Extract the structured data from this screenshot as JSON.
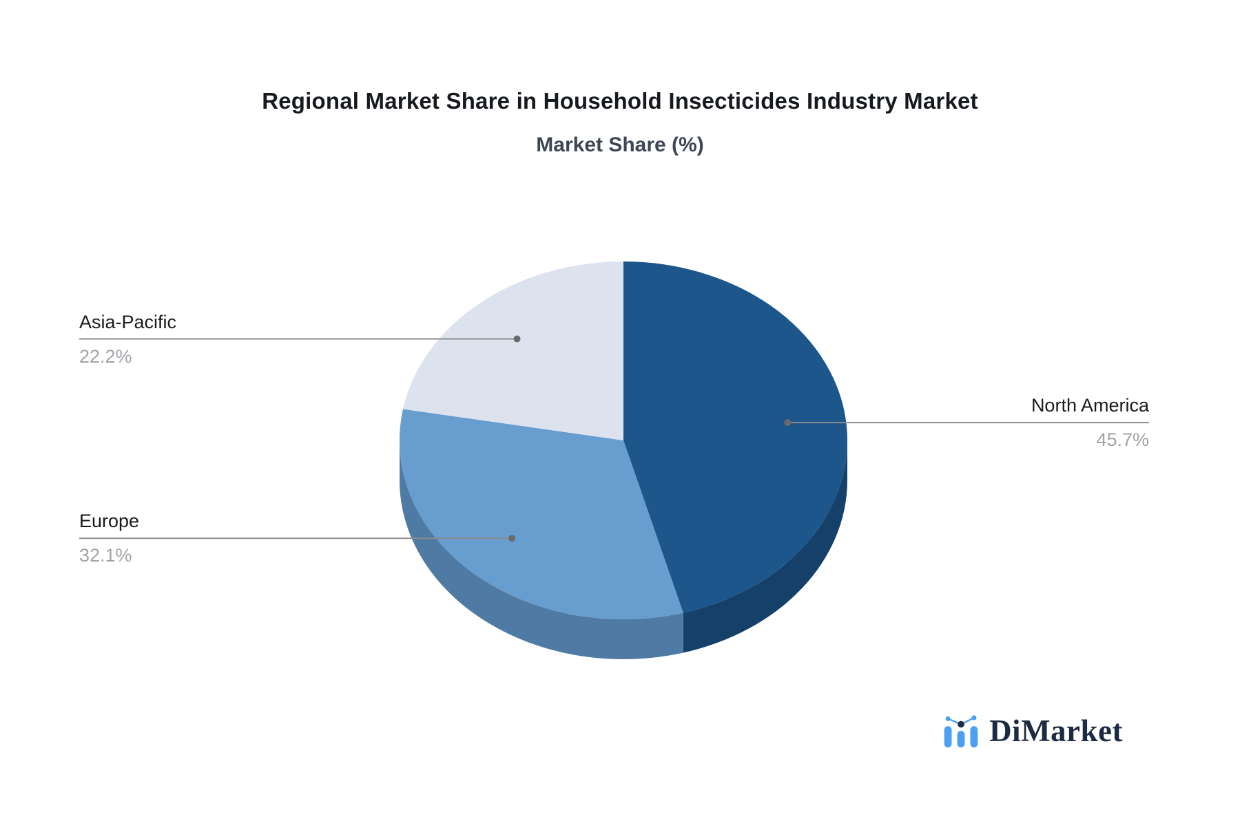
{
  "chart_data": {
    "type": "pie",
    "style": "3d",
    "title": "Regional Market Share in Household Insecticides Industry Market",
    "subtitle": "Market Share (%)",
    "unit": "%",
    "start_angle_deg": 0,
    "direction": "clockwise",
    "slices": [
      {
        "label": "North America",
        "value": 45.7,
        "value_label": "45.7%",
        "color": "#1c568a",
        "side_color": "#14406a"
      },
      {
        "label": "Europe",
        "value": 32.1,
        "value_label": "32.1%",
        "color": "#689dd0",
        "side_color": "#4f7aa4"
      },
      {
        "label": "Asia-Pacific",
        "value": 22.2,
        "value_label": "22.2%",
        "color": "#dce3ee",
        "side_color": "#c2cfe2"
      }
    ],
    "label_style": {
      "leader_line_color": "#8c8c8c",
      "leader_dot_color": "#6b6b6b",
      "name_color": "#1a1a1a",
      "value_color": "#a0a3a8"
    },
    "legend": "none",
    "grid": "off"
  },
  "branding": {
    "logo_text": "DiMarket",
    "logo_icon": "bar-line-chart-icon",
    "logo_text_color": "#1c2b42",
    "logo_icon_color": "#4d9ff3",
    "logo_icon_dot_color": "#1d2d44"
  }
}
